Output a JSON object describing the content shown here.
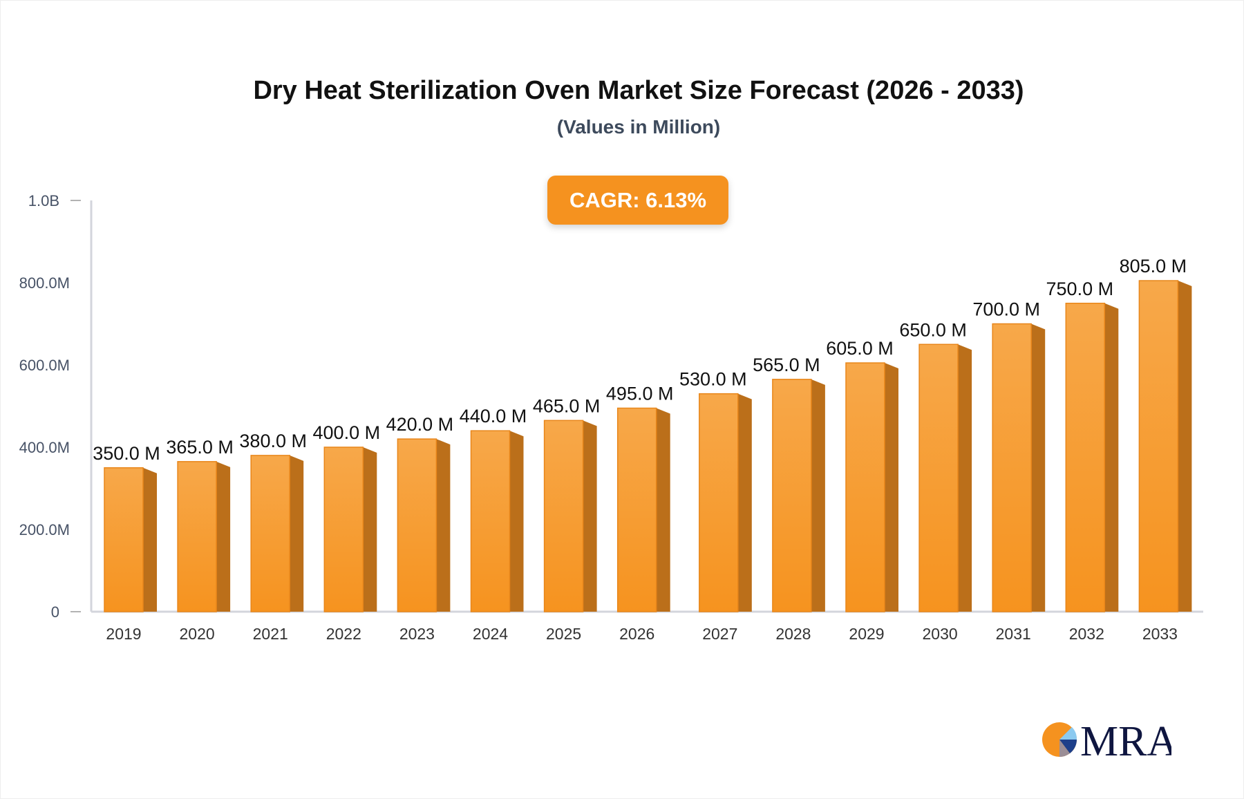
{
  "chart_data": {
    "type": "bar",
    "title": "Dry Heat Sterilization Oven Market Size Forecast (2026 - 2033)",
    "subtitle": "(Values in Million)",
    "annotation": "CAGR: 6.13%",
    "categories": [
      "2019",
      "2020",
      "2021",
      "2022",
      "2023",
      "2024",
      "2025",
      "2026",
      "2027",
      "2028",
      "2029",
      "2030",
      "2031",
      "2032",
      "2033"
    ],
    "values": [
      350,
      365,
      380,
      400,
      420,
      440,
      465,
      495,
      530,
      565,
      605,
      650,
      700,
      750,
      805
    ],
    "data_labels": [
      "350.0 M",
      "365.0 M",
      "380.0 M",
      "400.0 M",
      "420.0 M",
      "440.0 M",
      "465.0 M",
      "495.0 M",
      "530.0 M",
      "565.0 M",
      "605.0 M",
      "650.0 M",
      "700.0 M",
      "750.0 M",
      "805.0 M"
    ],
    "unit": "Million",
    "ylim": [
      0,
      1000
    ],
    "yticks": [
      0,
      200,
      400,
      600,
      800,
      1000
    ],
    "ytick_labels": [
      "0",
      "200.0M",
      "400.0M",
      "600.0M",
      "800.0M",
      "1.0B"
    ],
    "grid": false,
    "colors": {
      "bar_front": "#f7a33c",
      "bar_side": "#bb6f1a",
      "cagr_badge": "#f5921f"
    }
  },
  "logo": {
    "text": "MRA"
  }
}
